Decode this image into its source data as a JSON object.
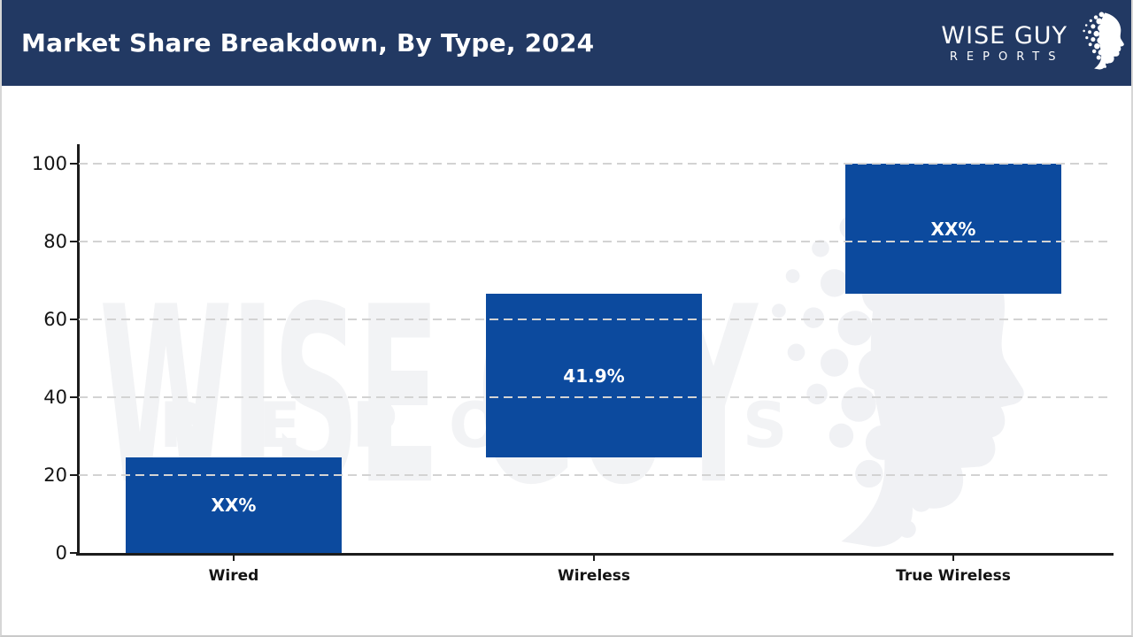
{
  "header": {
    "title": "Market Share Breakdown, By Type, 2024",
    "logo": {
      "line1": "WISE GUY",
      "line2": "REPORTS"
    }
  },
  "watermark": {
    "line1": "WISE GUY",
    "line2": "REPORTS"
  },
  "colors": {
    "header_bg": "#223963",
    "bar": "#0c4a9e",
    "axis": "#1c1c1c",
    "grid": "#d3d3d3",
    "watermark": "#f2f3f5",
    "bar_label": "#ffffff",
    "title_text": "#ffffff"
  },
  "chart_data": {
    "type": "bar",
    "subtype": "waterfall",
    "title": "Market Share Breakdown, By Type, 2024",
    "categories": [
      "Wired",
      "Wireless",
      "True Wireless"
    ],
    "segments": [
      {
        "category": "Wired",
        "start": 0,
        "end": 24.6,
        "label": "XX%"
      },
      {
        "category": "Wireless",
        "start": 24.6,
        "end": 66.5,
        "label": "41.9%"
      },
      {
        "category": "True Wireless",
        "start": 66.5,
        "end": 100,
        "label": "XX%"
      }
    ],
    "yticks": [
      0,
      20,
      40,
      60,
      80,
      100
    ],
    "ylim": [
      0,
      105
    ],
    "xlabel": "",
    "ylabel": "",
    "grid": "dashed-horizontal-over-bars",
    "legend": "none"
  }
}
